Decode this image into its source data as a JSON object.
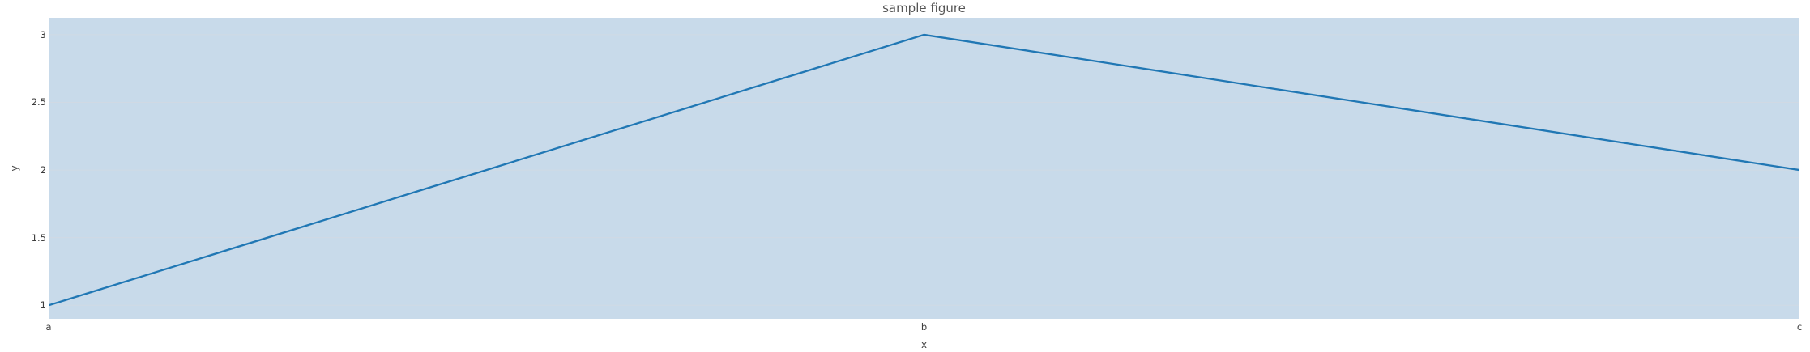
{
  "chart_data": {
    "type": "line",
    "title": "sample figure",
    "xlabel": "x",
    "ylabel": "y",
    "categories": [
      "a",
      "b",
      "c"
    ],
    "series": [
      {
        "name": "y",
        "values": [
          1,
          3,
          2
        ]
      }
    ],
    "yticks": [
      1,
      1.5,
      2,
      2.5,
      3
    ],
    "ytick_labels": [
      "1",
      "1.5",
      "2",
      "2.5",
      "3"
    ],
    "ylim": [
      0.9,
      3.125
    ],
    "grid": true,
    "legend": "none",
    "colors": {
      "line": "#2077b4",
      "plot_background": "#c8daea",
      "gridline": "#d0d9e4",
      "title_text": "#555555",
      "tick_text": "#3d3d3d",
      "page_background": "#ffffff"
    }
  }
}
